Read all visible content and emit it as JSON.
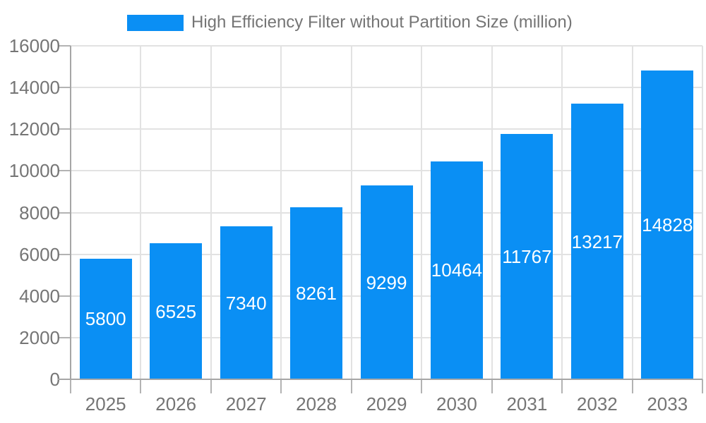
{
  "legend": {
    "label": "High Efficiency Filter without Partition Size (million)"
  },
  "chart_data": {
    "type": "bar",
    "title": "High Efficiency Filter without Partition Size (million)",
    "legend_label": "High Efficiency Filter without Partition Size (million)",
    "legend_position": "top",
    "categories": [
      "2025",
      "2026",
      "2027",
      "2028",
      "2029",
      "2030",
      "2031",
      "2032",
      "2033"
    ],
    "values": [
      5800,
      6525,
      7340,
      8261,
      9299,
      10464,
      11767,
      13217,
      14828
    ],
    "xlabel": "",
    "ylabel": "",
    "ylim": [
      0,
      16000
    ],
    "ytick_step": 2000,
    "yticks": [
      0,
      2000,
      4000,
      6000,
      8000,
      10000,
      12000,
      14000,
      16000
    ],
    "grid": true,
    "colors": {
      "bar": "#0a8ff4",
      "value_label": "#ffffff",
      "axis_text": "#757575",
      "grid_line": "#e2e2e2",
      "axis_line": "#a6a6a6",
      "tick_mark": "#b3b3b3",
      "background": "#ffffff"
    }
  }
}
